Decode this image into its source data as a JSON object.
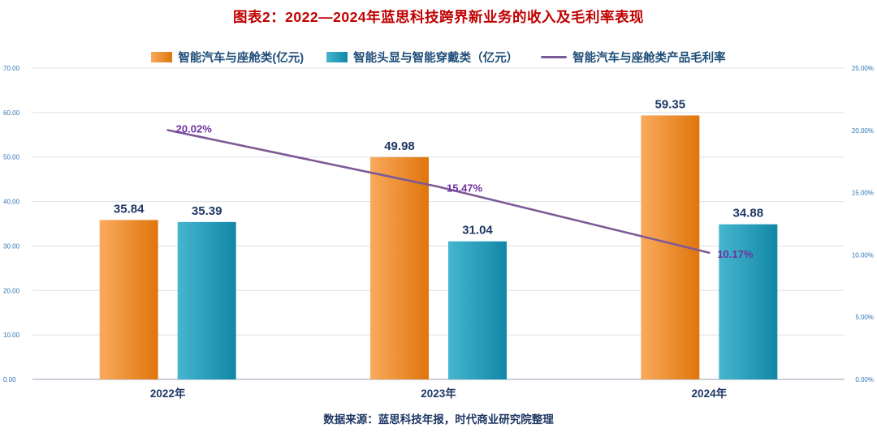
{
  "title": "图表2：2022—2024年蓝思科技跨界新业务的收入及毛利率表现",
  "footer": "数据来源：蓝思科技年报，时代商业研究院整理",
  "colors": {
    "title": "#c00000",
    "legend_text": "#1f4e79",
    "axis_tick_text": "#2e74b5",
    "value_text": "#1f3864",
    "gridline": "#dbe1e8",
    "baseline": "#aab4c0"
  },
  "chart_data": {
    "type": "combo-bar-line",
    "grid": true,
    "legend_position": "top",
    "categories": [
      "2022年",
      "2023年",
      "2024年"
    ],
    "series": [
      {
        "name": "智能汽车与座舱类(亿元)",
        "type": "bar",
        "axis": "left",
        "values": [
          35.84,
          49.98,
          59.35
        ],
        "value_labels": [
          "35.84",
          "49.98",
          "59.35"
        ],
        "gradient": [
          "#f9aa5d",
          "#e0750b"
        ]
      },
      {
        "name": "智能头显与智能穿戴类（亿元）",
        "type": "bar",
        "axis": "left",
        "values": [
          35.39,
          31.04,
          34.88
        ],
        "value_labels": [
          "35.39",
          "31.04",
          "34.88"
        ],
        "gradient": [
          "#46b6cf",
          "#1187a6"
        ]
      },
      {
        "name": "智能汽车与座舱类产品毛利率",
        "type": "line",
        "axis": "right",
        "values": [
          20.02,
          15.47,
          10.17
        ],
        "value_labels": [
          "20.02%",
          "15.47%",
          "10.17%"
        ],
        "color": "#7d5a96",
        "label_color": "#7030a0"
      }
    ],
    "left_axis": {
      "min": 0,
      "max": 70,
      "step": 10,
      "ticks": [
        "0.00",
        "10.00",
        "20.00",
        "30.00",
        "40.00",
        "50.00",
        "60.00",
        "70.00"
      ]
    },
    "right_axis": {
      "min": 0,
      "max": 25,
      "step": 5,
      "ticks": [
        "0.00%",
        "5.00%",
        "10.00%",
        "15.00%",
        "20.00%",
        "25.00%"
      ]
    }
  }
}
